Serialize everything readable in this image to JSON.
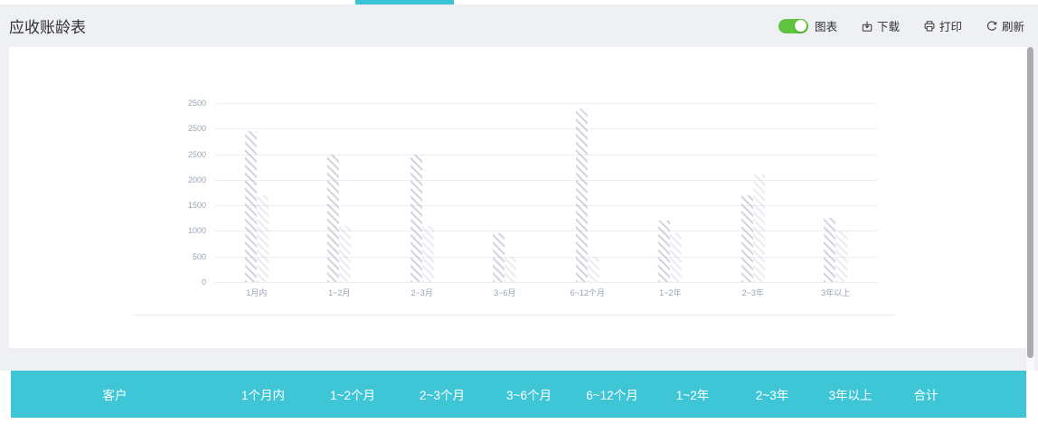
{
  "header": {
    "title": "应收账龄表",
    "toggle": {
      "label": "图表",
      "state": "on"
    },
    "buttons": [
      {
        "label": "下载",
        "icon": "download-icon"
      },
      {
        "label": "打印",
        "icon": "print-icon"
      },
      {
        "label": "刷新",
        "icon": "refresh-icon"
      }
    ]
  },
  "colors": {
    "accent_bar": "#3bc4d8",
    "table_header_bg": "#3ec6d6",
    "toggle_on": "#5ec53c",
    "axis_label": "#99a2b4",
    "gridline": "#eceef2",
    "hatch_dark": "#acb3c5",
    "hatch_light": "#c5cbda"
  },
  "chart_data": {
    "type": "bar",
    "title": "",
    "categories": [
      "1月内",
      "1~2月",
      "2~3月",
      "3~6月",
      "6~12个月",
      "1~2年",
      "2~3年",
      "3年以上"
    ],
    "series": [
      {
        "name": "left-bar",
        "values": [
          2950,
          2500,
          2500,
          950,
          3400,
          1200,
          1700,
          1250
        ]
      },
      {
        "name": "right-bar",
        "values": [
          1700,
          1100,
          1100,
          500,
          500,
          950,
          2100,
          1000
        ]
      }
    ],
    "xlabel": "",
    "ylabel": "",
    "ylim": [
      0,
      3500
    ],
    "ytick_labels_bottom_to_top": [
      "0",
      "500",
      "1000",
      "1500",
      "2000",
      "2500",
      "2500",
      "2500"
    ],
    "grid": true,
    "legend": "none",
    "bar_style": "diagonal-hatch"
  },
  "table": {
    "columns": [
      "客户",
      "1个月内",
      "1~2个月",
      "2~3个月",
      "3~6个月",
      "6~12个月",
      "1~2年",
      "2~3年",
      "3年以上",
      "合计"
    ]
  }
}
